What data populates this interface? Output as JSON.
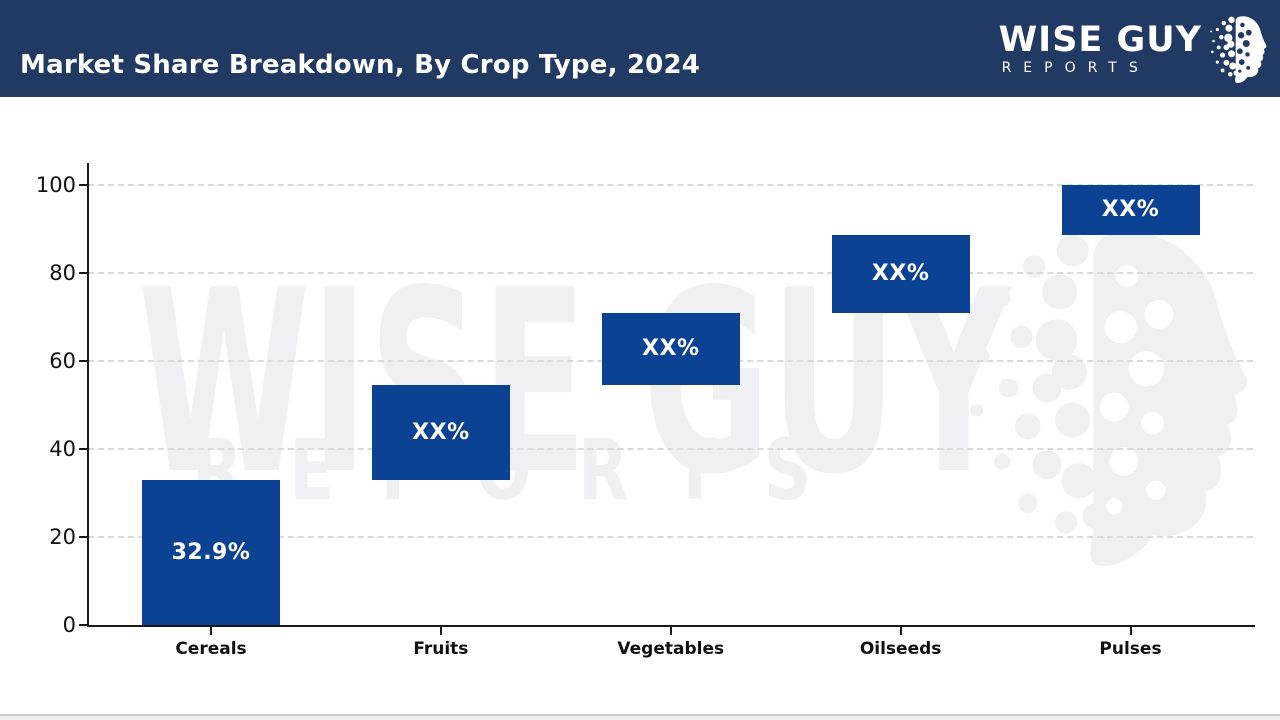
{
  "header": {
    "title": "Market Share Breakdown, By Crop Type, 2024",
    "brand": {
      "line1": "WISE GUY",
      "line2": "REPORTS"
    },
    "colors": {
      "background": "#213a63",
      "text": "#ffffff"
    }
  },
  "watermark": {
    "line1": "WISE GUY",
    "line2": "REPORTS"
  },
  "chart_data": {
    "type": "bar",
    "subtype": "waterfall",
    "title": "Market Share Breakdown, By Crop Type, 2024",
    "categories": [
      "Cereals",
      "Fruits",
      "Vegetables",
      "Oilseeds",
      "Pulses"
    ],
    "series": [
      {
        "name": "Market share (%)",
        "segments": [
          {
            "category": "Cereals",
            "base": 0,
            "top": 32.9,
            "label": "32.9%"
          },
          {
            "category": "Fruits",
            "base": 32.9,
            "top": 54.5,
            "label": "XX%"
          },
          {
            "category": "Vegetables",
            "base": 54.5,
            "top": 71.0,
            "label": "XX%"
          },
          {
            "category": "Oilseeds",
            "base": 71.0,
            "top": 88.7,
            "label": "XX%"
          },
          {
            "category": "Pulses",
            "base": 88.7,
            "top": 100.0,
            "label": "XX%"
          }
        ]
      }
    ],
    "xlabel": "",
    "ylabel": "",
    "ylim": [
      0,
      105
    ],
    "yticks": [
      0,
      20,
      40,
      60,
      80,
      100
    ],
    "grid": "horizontal-dashed",
    "legend": "none",
    "bar_color": "#0b4294",
    "bar_label_color": "#ffffff",
    "axis_color": "#1a1a1a",
    "gridline_color": "#d9d9d9"
  }
}
